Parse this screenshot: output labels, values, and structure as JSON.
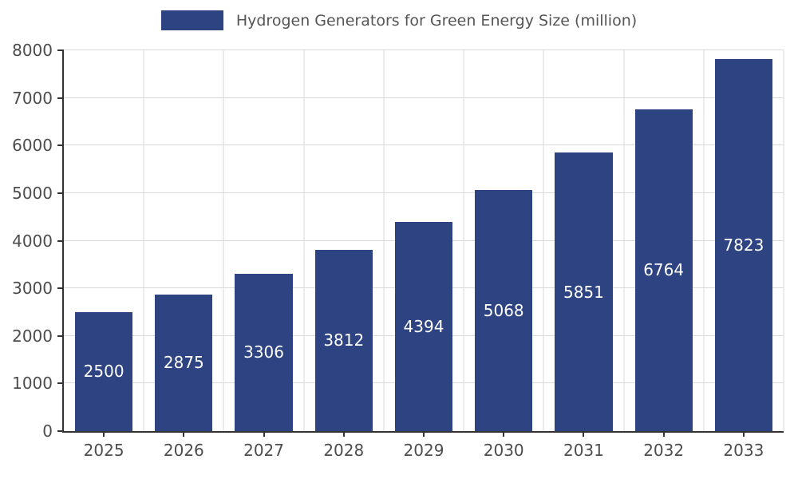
{
  "chart_data": {
    "type": "bar",
    "title": "Hydrogen Generators for Green Energy Size (million)",
    "categories": [
      "2025",
      "2026",
      "2027",
      "2028",
      "2029",
      "2030",
      "2031",
      "2032",
      "2033"
    ],
    "values": [
      2500,
      2875,
      3306,
      3812,
      4394,
      5068,
      5851,
      6764,
      7823
    ],
    "xlabel": "",
    "ylabel": "",
    "ylim": [
      0,
      8000
    ],
    "ytick_step": 1000,
    "grid": true,
    "legend_position": "top-center",
    "bar_color": "#2e4482",
    "value_label_color": "#ffffff",
    "tick_label_color": "#4d4d4d"
  }
}
